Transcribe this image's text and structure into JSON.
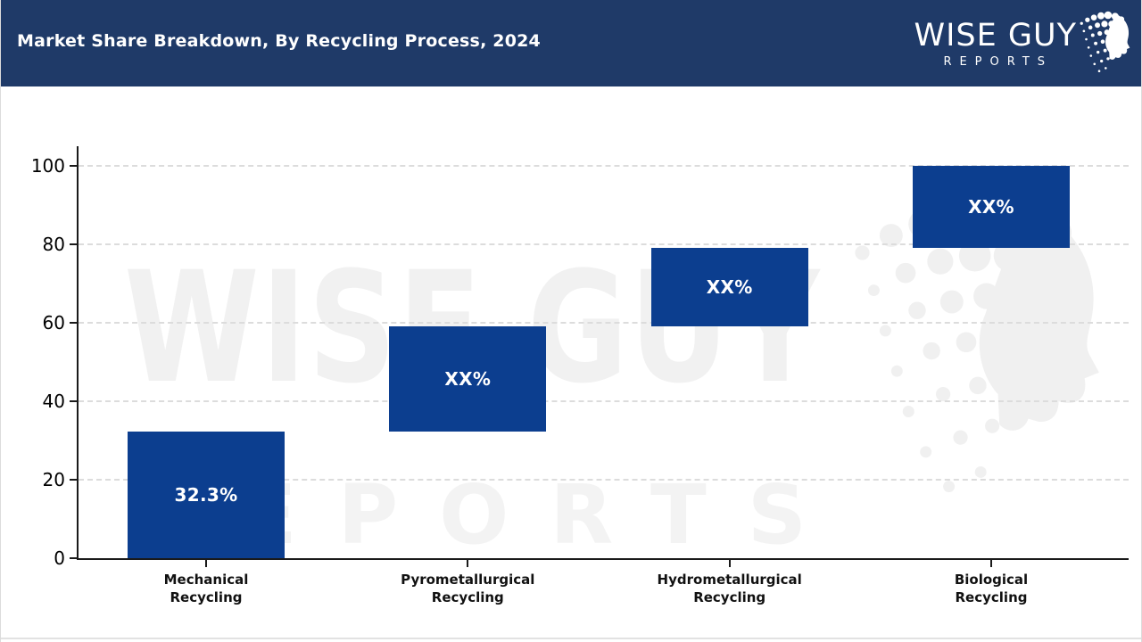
{
  "header": {
    "title": "Market Share Breakdown, By Recycling Process, 2024",
    "logo": {
      "name": "WISE GUY",
      "tagline": "REPORTS"
    }
  },
  "watermark": {
    "name": "WISE GUY",
    "tagline": "REPORTS"
  },
  "colors": {
    "header_bg": "#1f3a68",
    "bar": "#0c3e8f",
    "grid": "#dcdcdc",
    "axis": "#1a1a1a",
    "bar_label": "#ffffff",
    "watermark": "#f1f1f1"
  },
  "chart_data": {
    "type": "bar",
    "variant": "waterfall",
    "title": "Market Share Breakdown, By Recycling Process, 2024",
    "categories": [
      [
        "Mechanical",
        "Recycling"
      ],
      [
        "Pyrometallurgical",
        "Recycling"
      ],
      [
        "Hydrometallurgical",
        "Recycling"
      ],
      [
        "Biological",
        "Recycling"
      ]
    ],
    "segments": [
      {
        "start": 0,
        "end": 32.3,
        "label": "32.3%"
      },
      {
        "start": 32.3,
        "end": 59,
        "label": "XX%"
      },
      {
        "start": 59,
        "end": 79,
        "label": "XX%"
      },
      {
        "start": 79,
        "end": 100,
        "label": "XX%"
      }
    ],
    "ylim": [
      0,
      100
    ],
    "yticks": [
      0,
      20,
      40,
      60,
      80,
      100
    ],
    "grid": "horizontal-dashed",
    "legend": "none",
    "xlabel": "",
    "ylabel": ""
  }
}
